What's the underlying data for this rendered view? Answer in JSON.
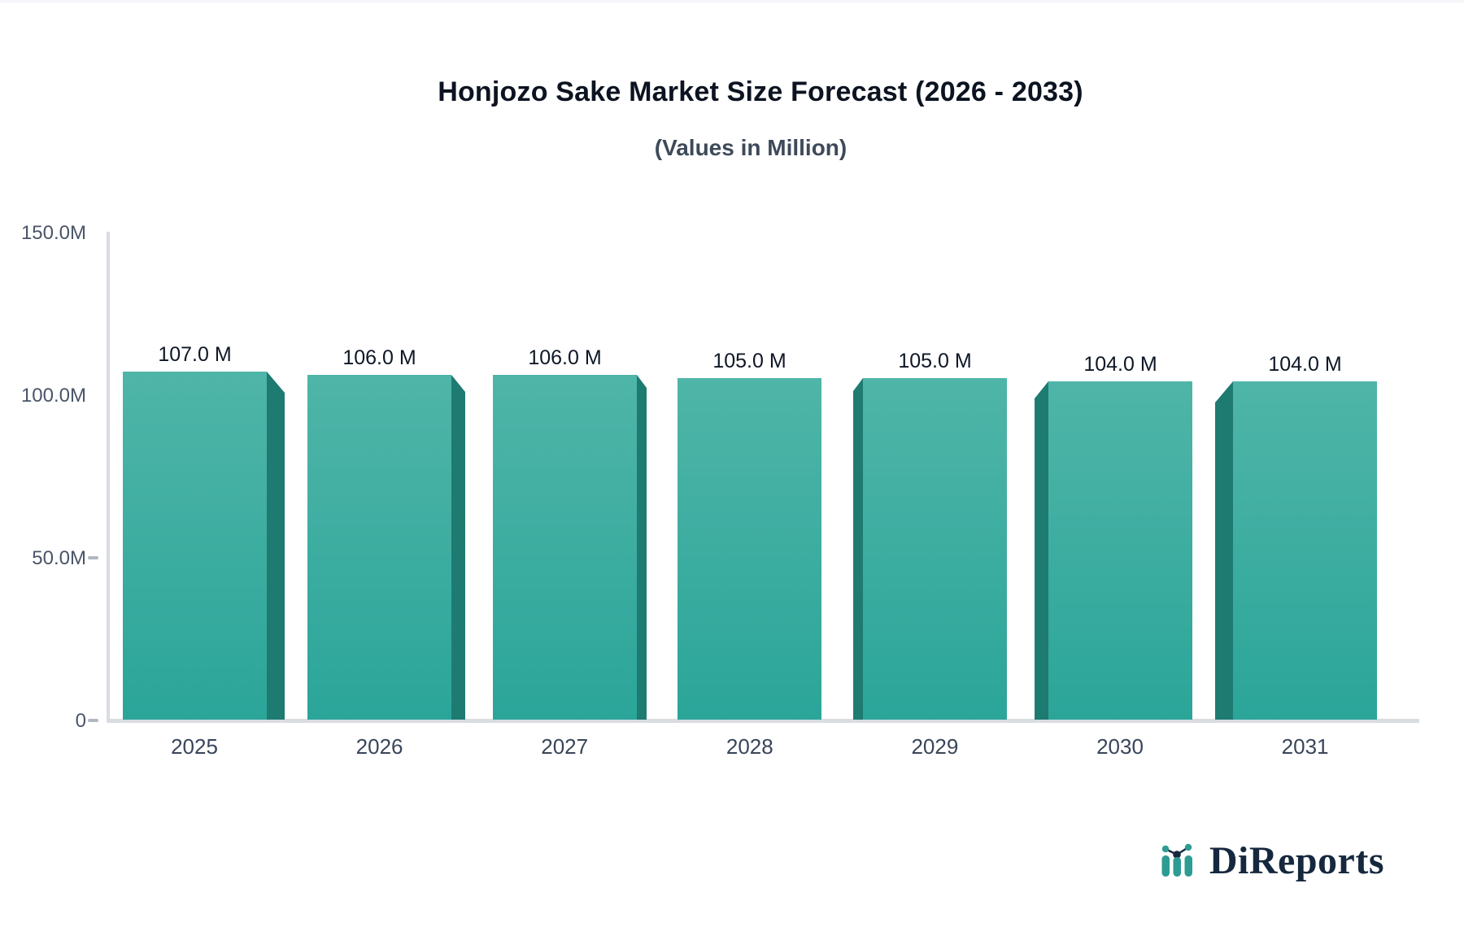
{
  "chart_data": {
    "type": "bar",
    "title": "Honjozo Sake Market Size Forecast (2026 - 2033)",
    "subtitle": "(Values in Million)",
    "categories": [
      "2025",
      "2026",
      "2027",
      "2028",
      "2029",
      "2030",
      "2031"
    ],
    "values": [
      107,
      106,
      106,
      105,
      105,
      104,
      104
    ],
    "value_labels": [
      "107.0 M",
      "106.0 M",
      "106.0 M",
      "105.0 M",
      "105.0 M",
      "104.0 M",
      "104.0 M"
    ],
    "unit": "M",
    "ylim": [
      0,
      150
    ],
    "y_ticks": [
      {
        "value": 150,
        "label": "150.0M",
        "tick_mark": false
      },
      {
        "value": 100,
        "label": "100.0M",
        "tick_mark": false
      },
      {
        "value": 50,
        "label": "50.0M",
        "tick_mark": true
      },
      {
        "value": 0,
        "label": "0",
        "tick_mark": true
      }
    ],
    "grid": false,
    "legend": null,
    "colors": {
      "bar_face_top": "#4FB5A8",
      "bar_face_bottom": "#2BA599",
      "bar_side": "#1E7B71",
      "axis_line": "#D9DCE1",
      "tick_label": "#4A5568",
      "category_label": "#39455A",
      "value_label": "#0E1726"
    }
  },
  "logo": {
    "text": "DiReports",
    "icon": "mini-bar-line-chart-icon",
    "text_color": "#16283E",
    "accent_color": "#2D9C92"
  }
}
